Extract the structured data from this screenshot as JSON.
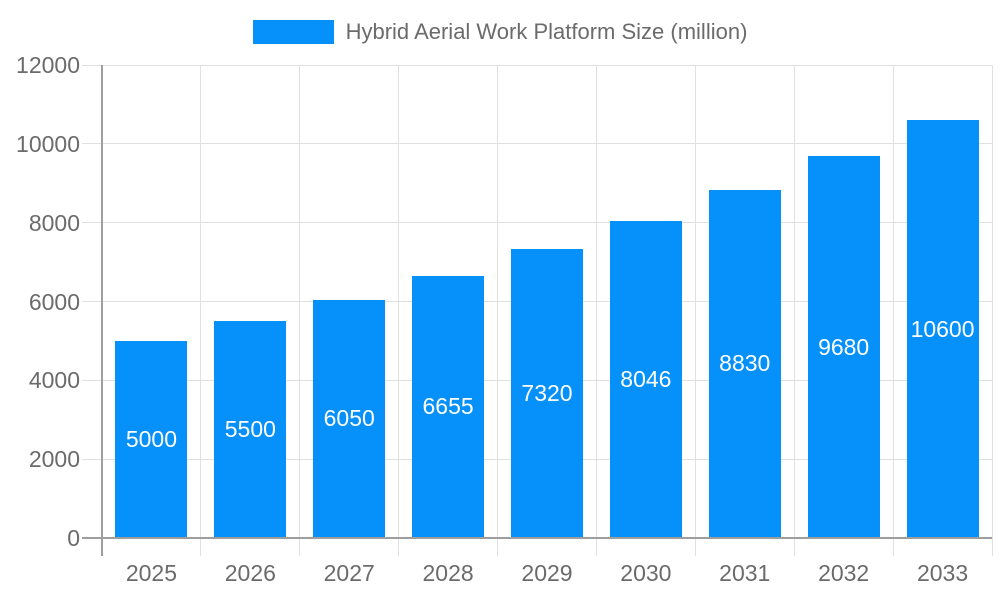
{
  "legend": {
    "label": "Hybrid Aerial Work Platform Size (million)",
    "swatch_color": "#0590fa"
  },
  "chart_data": {
    "type": "bar",
    "title": "Hybrid Aerial Work Platform Size (million)",
    "series_name": "Hybrid Aerial Work Platform Size (million)",
    "categories": [
      "2025",
      "2026",
      "2027",
      "2028",
      "2029",
      "2030",
      "2031",
      "2032",
      "2033"
    ],
    "values": [
      5000,
      5500,
      6050,
      6655,
      7320,
      8046,
      8830,
      9680,
      10600
    ],
    "value_labels": [
      "5000",
      "5500",
      "6050",
      "6655",
      "7320",
      "8046",
      "8830",
      "9680",
      "10600"
    ],
    "xlabel": "",
    "ylabel": "",
    "ylim": [
      0,
      12000
    ],
    "yticks": [
      0,
      2000,
      4000,
      6000,
      8000,
      10000,
      12000
    ],
    "ytick_labels": [
      "0",
      "2000",
      "4000",
      "6000",
      "8000",
      "10000",
      "12000"
    ],
    "grid": true,
    "legend_position": "top",
    "bar_color": "#0590fa",
    "value_label_color": "#ffffff",
    "axis_text_color": "#6b6b6b",
    "grid_color": "#e0e0e0",
    "axis_line_color": "#9e9e9e",
    "background_color": "#ffffff"
  }
}
